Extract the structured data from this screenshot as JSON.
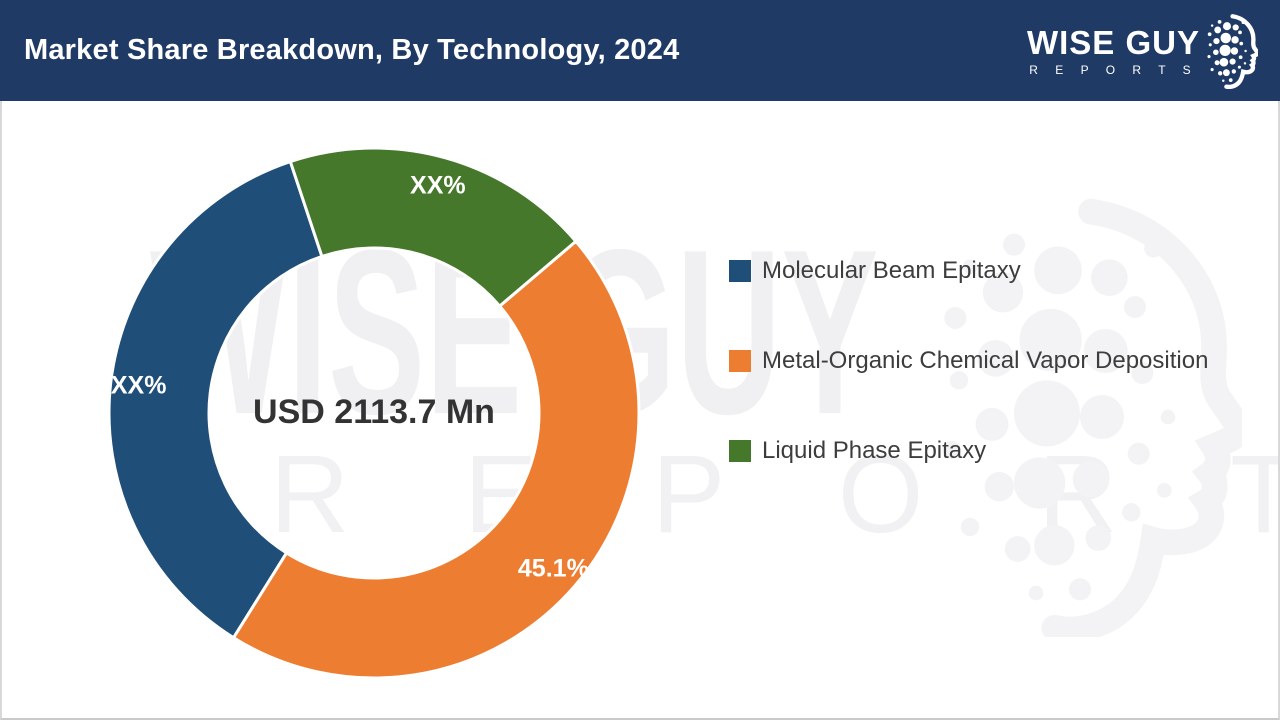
{
  "header": {
    "title": "Market Share Breakdown, By Technology, 2024",
    "logo": {
      "line1": "WISE GUY",
      "line2": "R E P O R T S"
    }
  },
  "watermark": {
    "line1": "WISE GUY",
    "line2": "R E P O R T S"
  },
  "colors": {
    "header_bg": "#203A66",
    "blue": "#1F4E79",
    "orange": "#ED7D31",
    "green": "#46782B"
  },
  "chart_data": {
    "type": "pie",
    "donut": true,
    "title": "Market Share Breakdown, By Technology, 2024",
    "center_label": "USD 2113.7 Mn",
    "legend_position": "right",
    "start_angle_deg_clockwise_from_top": 212,
    "draw_order": [
      0,
      2,
      1
    ],
    "segments": [
      {
        "name": "Molecular Beam Epitaxy",
        "value": 36.0,
        "display_label": "XX%",
        "color": "#1F4E79"
      },
      {
        "name": "Metal-Organic Chemical Vapor Deposition",
        "value": 45.1,
        "display_label": "45.1%",
        "color": "#ED7D31"
      },
      {
        "name": "Liquid Phase Epitaxy",
        "value": 18.9,
        "display_label": "XX%",
        "color": "#46782B"
      }
    ]
  }
}
